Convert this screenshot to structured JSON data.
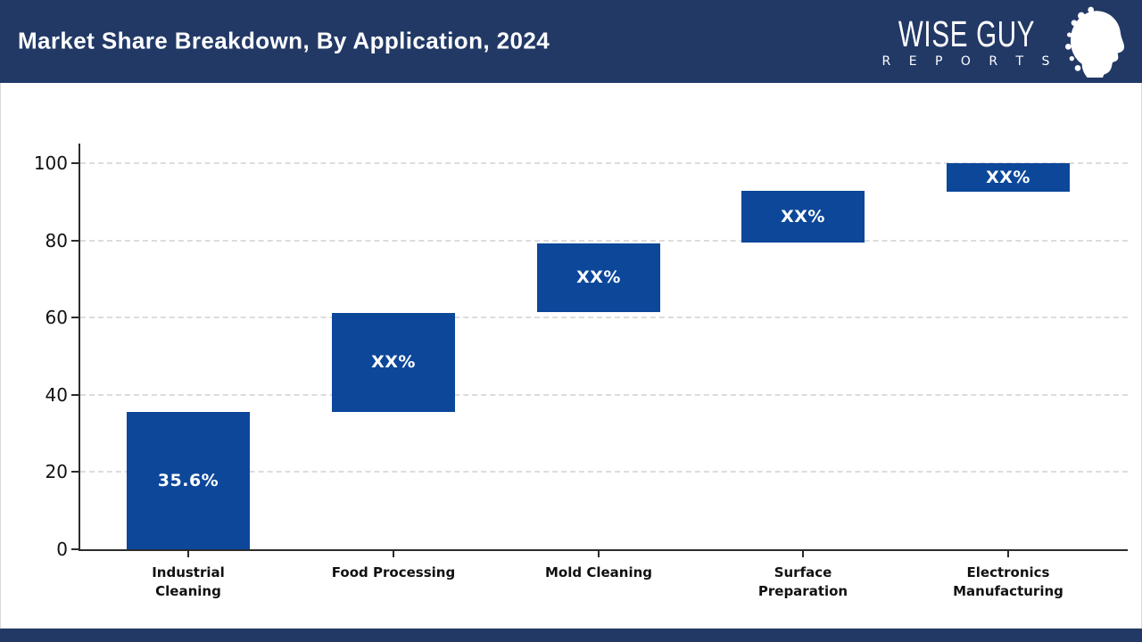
{
  "header": {
    "title": "Market Share Breakdown, By Application, 2024",
    "background_color": "#223966",
    "logo": {
      "line1": "WISE GUY",
      "line2": "R E P O R T S"
    }
  },
  "watermark": {
    "line1": "WISE GUY",
    "line2": "R E P O R T S"
  },
  "chart_data": {
    "type": "bar",
    "subtype": "waterfall-stepped-market-share",
    "title": "Market Share Breakdown, By Application, 2024",
    "categories": [
      "Industrial Cleaning",
      "Food Processing",
      "Mold Cleaning",
      "Surface Preparation",
      "Electronics Manufacturing"
    ],
    "category_label_lines": [
      "Industrial\nCleaning",
      "Food Processing",
      "Mold Cleaning",
      "Surface\nPreparation",
      "Electronics\nManufacturing"
    ],
    "segments": [
      {
        "category": "Industrial Cleaning",
        "start": 0,
        "end": 35.6,
        "label": "35.6%"
      },
      {
        "category": "Food Processing",
        "start": 35.6,
        "end": 61.2,
        "label": "XX%"
      },
      {
        "category": "Mold Cleaning",
        "start": 61.5,
        "end": 79.2,
        "label": "XX%"
      },
      {
        "category": "Surface Preparation",
        "start": 79.4,
        "end": 92.9,
        "label": "XX%"
      },
      {
        "category": "Electronics Manufacturing",
        "start": 92.7,
        "end": 100,
        "label": "XX%"
      }
    ],
    "yticks": [
      0,
      20,
      40,
      60,
      80,
      100
    ],
    "ylim": [
      0,
      105
    ],
    "xlabel": "",
    "ylabel": "",
    "grid": "horizontal-dashed",
    "legend": "none",
    "bar_color": "#0c479a",
    "bar_label_color": "#ffffff",
    "gridline_color": "#dcdcdc",
    "axis_color": "#2b2b2b"
  },
  "footer": {
    "background_color": "#223966"
  }
}
